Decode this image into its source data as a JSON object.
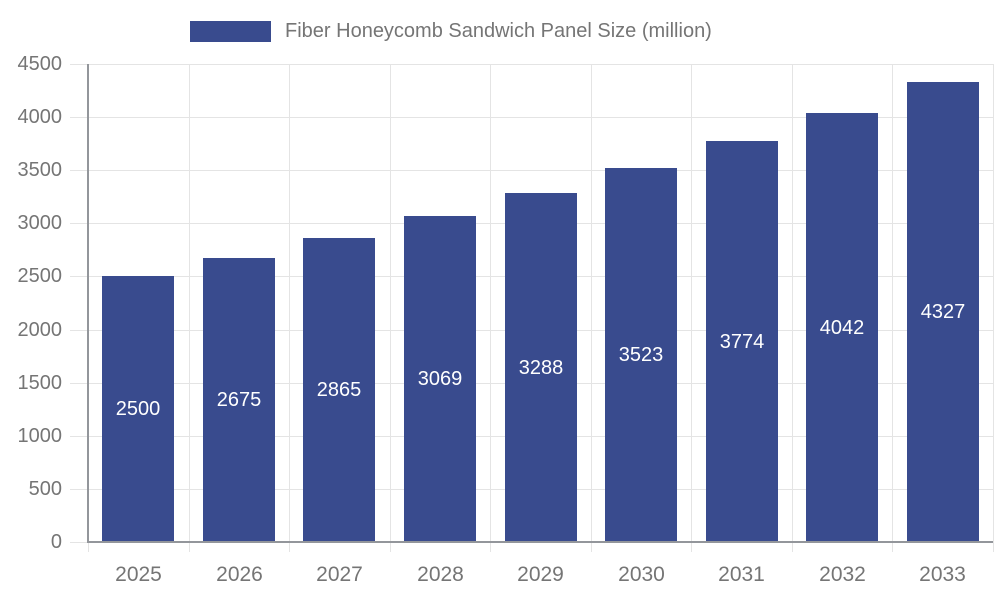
{
  "chart_data": {
    "type": "bar",
    "title": "Fiber Honeycomb Sandwich Panel Size (million)",
    "legend": [
      "Fiber Honeycomb Sandwich Panel Size (million)"
    ],
    "legend_position": "top",
    "categories": [
      "2025",
      "2026",
      "2027",
      "2028",
      "2029",
      "2030",
      "2031",
      "2032",
      "2033"
    ],
    "series": [
      {
        "name": "Fiber Honeycomb Sandwich Panel Size (million)",
        "values": [
          2500,
          2675,
          2865,
          3069,
          3288,
          3523,
          3774,
          4042,
          4327
        ]
      }
    ],
    "xlabel": "",
    "ylabel": "",
    "ylim": [
      0,
      4500
    ],
    "y_ticks": [
      0,
      500,
      1000,
      1500,
      2000,
      2500,
      3000,
      3500,
      4000,
      4500
    ],
    "grid": true,
    "bar_value_labels_shown": true
  },
  "colors": {
    "bar": "#394b8e",
    "bar_label": "#ffffff",
    "axis_text": "#757575",
    "gridline": "#e4e4e4",
    "axis_line": "#93969b",
    "background": "#ffffff"
  }
}
